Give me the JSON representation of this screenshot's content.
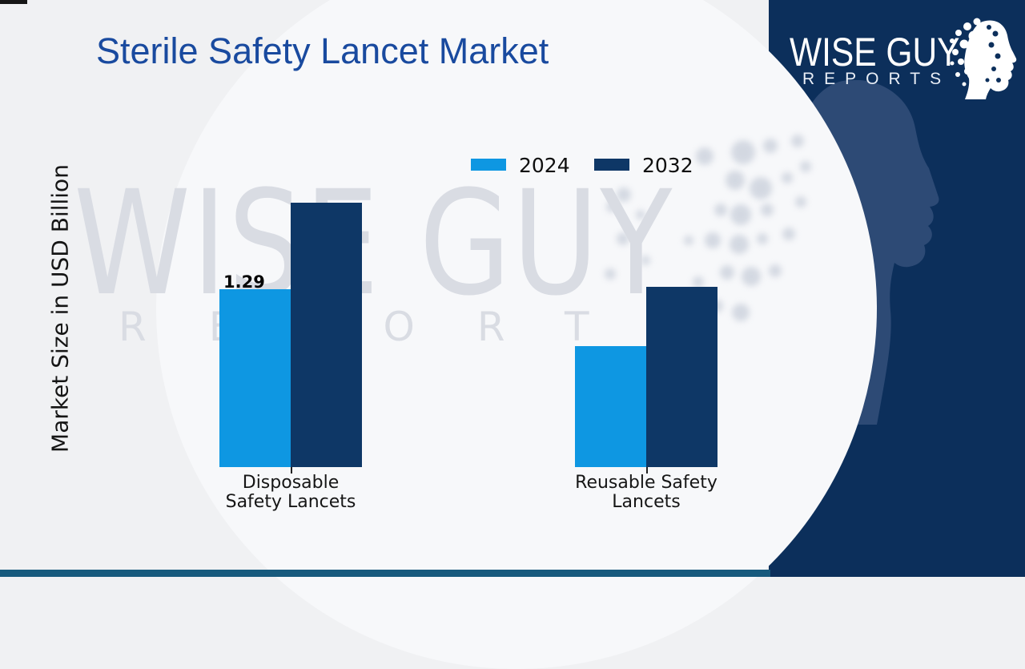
{
  "page": {
    "title": "Sterile Safety Lancet Market",
    "ylabel": "Market Size in USD Billion"
  },
  "legend": [
    {
      "label": "2024",
      "color": "#0e97e2"
    },
    {
      "label": "2032",
      "color": "#0e3766"
    }
  ],
  "watermark": {
    "line1": "WISE GUY",
    "line2": "REPORTS"
  },
  "logo": {
    "line1": "WISE GUY",
    "line2": "REPORTS"
  },
  "colors": {
    "background": "#f0f1f3",
    "title_blue": "#194a9f",
    "navy_band": "#0c2f5b",
    "slate_face": "#2d4a75",
    "teal_strip": "#175a7d",
    "bar_2024": "#0e97e2",
    "bar_2032": "#0e3766"
  },
  "chart_data": {
    "type": "bar",
    "title": "Sterile Safety Lancet Market",
    "xlabel": "",
    "ylabel": "Market Size in USD Billion",
    "categories": [
      "Disposable Safety Lancets",
      "Reusable Safety Lancets"
    ],
    "series": [
      {
        "name": "2024",
        "color": "#0e97e2",
        "values": [
          1.29,
          0.88
        ]
      },
      {
        "name": "2032",
        "color": "#0e3766",
        "values": [
          1.92,
          1.31
        ]
      }
    ],
    "value_labels": [
      {
        "series": "2024",
        "category_index": 0,
        "text": "1.29"
      }
    ],
    "ylim": [
      0,
      2.2
    ],
    "grid": false,
    "axes_visible": false,
    "legend_position": "top"
  }
}
